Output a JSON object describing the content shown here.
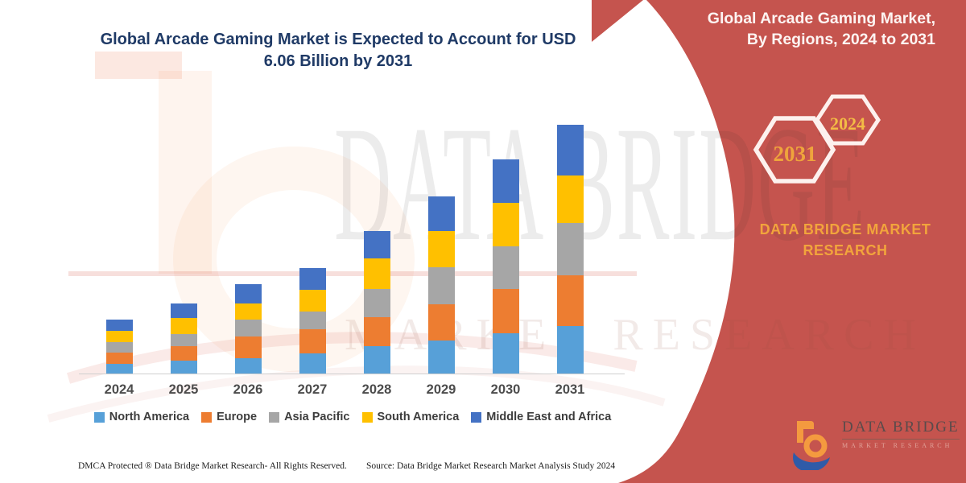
{
  "header": {
    "title_line1": "Global Arcade Gaming Market is Expected to Account for USD",
    "title_line2": "6.06 Billion by 2031",
    "title_color": "#1F3A66"
  },
  "side_panel": {
    "panel_color": "#C5544E",
    "title_line1": "Global Arcade Gaming Market,",
    "title_line2": "By Regions, 2024 to 2031",
    "hex_badge_large": "2031",
    "hex_badge_small": "2024",
    "brand_caption": "DATA BRIDGE MARKET RESEARCH",
    "accent_text_color": "#F2A43C"
  },
  "logo": {
    "brand": "DATA BRIDGE",
    "sub": "MARKET RESEARCH"
  },
  "watermark": {
    "line1": "DATA BRIDGE",
    "line2": "MARKET RESEARCH"
  },
  "footer": {
    "left": "DMCA Protected ® Data Bridge Market Research-  All Rights Reserved.",
    "source": "Source: Data Bridge Market Research  Market Analysis Study 2024"
  },
  "chart_data": {
    "type": "bar",
    "stacked": true,
    "title": "Global Arcade Gaming Market is Expected to Account for USD 6.06 Billion by 2031",
    "unit": "USD Billion",
    "categories": [
      "2024",
      "2025",
      "2026",
      "2027",
      "2028",
      "2029",
      "2030",
      "2031"
    ],
    "series": [
      {
        "name": "North America",
        "color": "#57A0D8",
        "values": [
          0.25,
          0.33,
          0.39,
          0.5,
          0.68,
          0.83,
          1.0,
          1.17
        ]
      },
      {
        "name": "Europe",
        "color": "#ED7D31",
        "values": [
          0.27,
          0.36,
          0.52,
          0.59,
          0.7,
          0.87,
          1.07,
          1.24
        ]
      },
      {
        "name": "Asia Pacific",
        "color": "#A6A6A6",
        "values": [
          0.27,
          0.28,
          0.41,
          0.44,
          0.7,
          0.9,
          1.04,
          1.26
        ]
      },
      {
        "name": "South America",
        "color": "#FFC000",
        "values": [
          0.27,
          0.4,
          0.4,
          0.53,
          0.73,
          0.88,
          1.05,
          1.16
        ]
      },
      {
        "name": "Middle East and Africa",
        "color": "#4472C4",
        "values": [
          0.27,
          0.36,
          0.46,
          0.53,
          0.67,
          0.83,
          1.05,
          1.23
        ]
      }
    ],
    "totals": [
      1.33,
      1.73,
      2.18,
      2.59,
      3.48,
      4.31,
      5.21,
      6.06
    ],
    "ylim": [
      0,
      6.5
    ],
    "grid": false,
    "y_axis_visible": false,
    "legend_position": "bottom"
  }
}
